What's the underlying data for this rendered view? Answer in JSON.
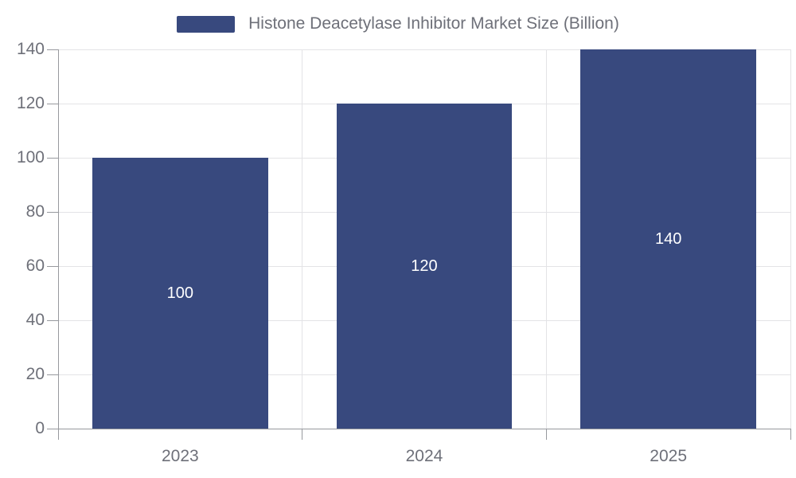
{
  "chart_data": {
    "type": "bar",
    "title": "Histone Deacetylase Inhibitor Market Size (Billion)",
    "categories": [
      "2023",
      "2024",
      "2025"
    ],
    "values": [
      100,
      120,
      140
    ],
    "value_labels": [
      "100",
      "120",
      "140"
    ],
    "xlabel": "",
    "ylabel": "",
    "ylim": [
      0,
      140
    ],
    "yticks": [
      0,
      20,
      40,
      60,
      80,
      100,
      120,
      140
    ],
    "grid": true,
    "legend": {
      "label": "Histone Deacetylase Inhibitor Market Size (Billion)",
      "position": "top-center"
    },
    "colors": {
      "bar": "#38497E",
      "value_label": "#FFFFFF",
      "axis_line": "#97999E",
      "grid_line": "#E3E3E6",
      "tick_text": "#6E7079",
      "legend_text": "#6E7079",
      "background": "#FFFFFF"
    }
  }
}
